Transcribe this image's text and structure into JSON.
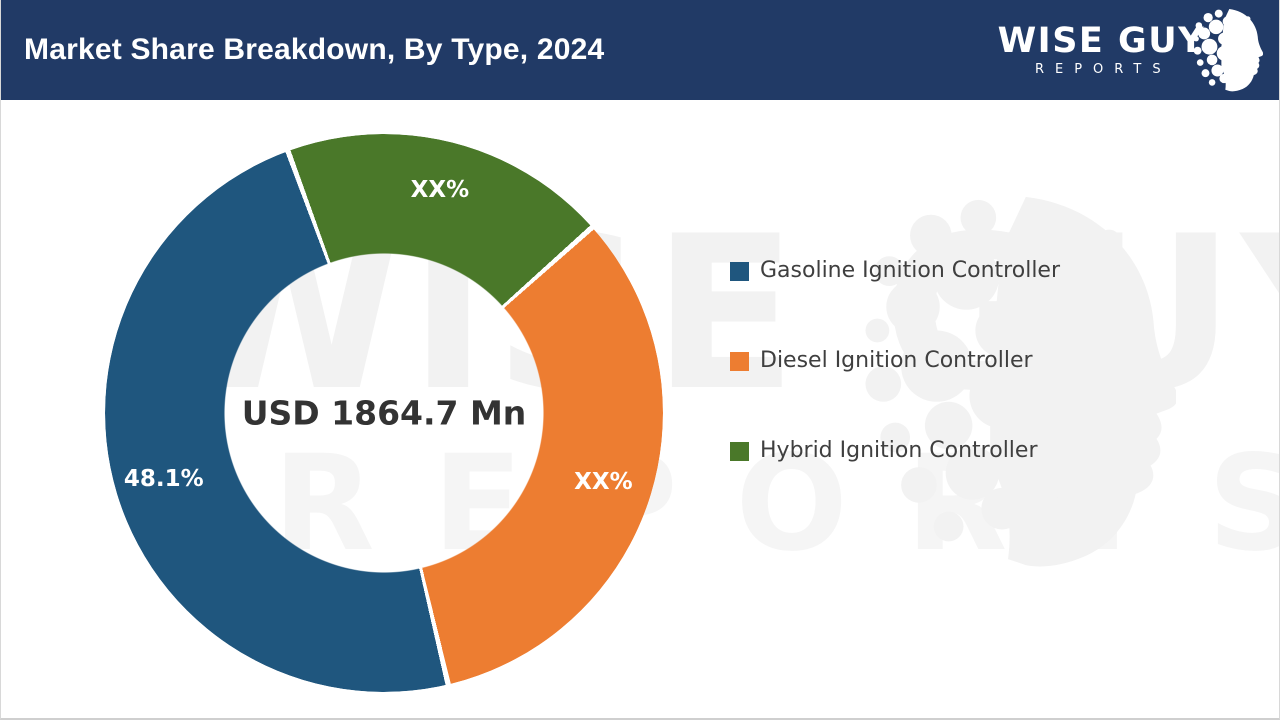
{
  "header": {
    "title": "Market Share Breakdown, By Type, 2024",
    "logo": {
      "name": "WISE GUY",
      "sub": "REPORTS"
    }
  },
  "chart_data": {
    "type": "pie",
    "subtype": "donut",
    "title": "Market Share Breakdown, By Type, 2024",
    "center_label": "USD 1864.7 Mn",
    "legend_position": "right",
    "start_angle_deg": 166.7,
    "draw_order": [
      0,
      2,
      1
    ],
    "slices": [
      {
        "name": "Gasoline Ignition Controller",
        "value": 48.1,
        "label": "48.1%",
        "color": "#1F567E"
      },
      {
        "name": "Diesel Ignition Controller",
        "value": 32.9,
        "label": "XX%",
        "color": "#ED7D31"
      },
      {
        "name": "Hybrid Ignition Controller",
        "value": 19.0,
        "label": "XX%",
        "color": "#4A7829"
      }
    ]
  },
  "watermark": {
    "line1": "WISE GUY",
    "line2": "REPORTS"
  }
}
